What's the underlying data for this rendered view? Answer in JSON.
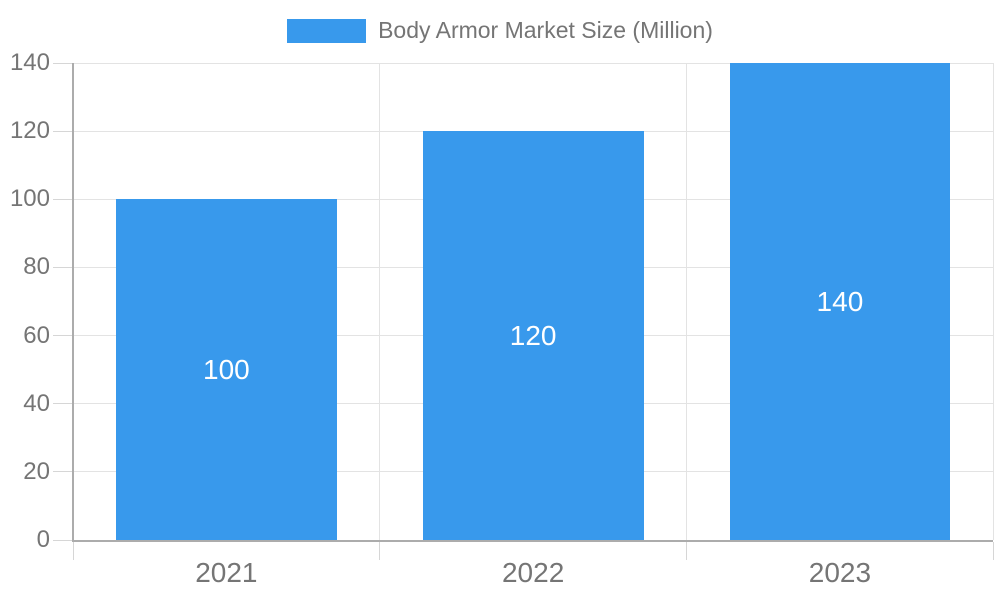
{
  "legend": {
    "label": "Body Armor Market Size (Million)"
  },
  "chart_data": {
    "type": "bar",
    "title": "Body Armor Market Size (Million)",
    "categories": [
      "2021",
      "2022",
      "2023"
    ],
    "values": [
      100,
      120,
      140
    ],
    "data_labels": [
      "100",
      "120",
      "140"
    ],
    "xlabel": "",
    "ylabel": "",
    "ylim": [
      0,
      140
    ],
    "yticks": [
      0,
      20,
      40,
      60,
      80,
      100,
      120,
      140
    ],
    "grid": true,
    "legend_position": "top-center",
    "bar_label_position": "inside-center"
  },
  "colors": {
    "bar": "#3899EC",
    "bar_label": "#FFFFFF",
    "axis_line": "#ACACAC",
    "gridline": "#E3E3E3",
    "tick_mark": "#D6D6D6",
    "text": "#757575",
    "background": "#FFFFFF"
  }
}
